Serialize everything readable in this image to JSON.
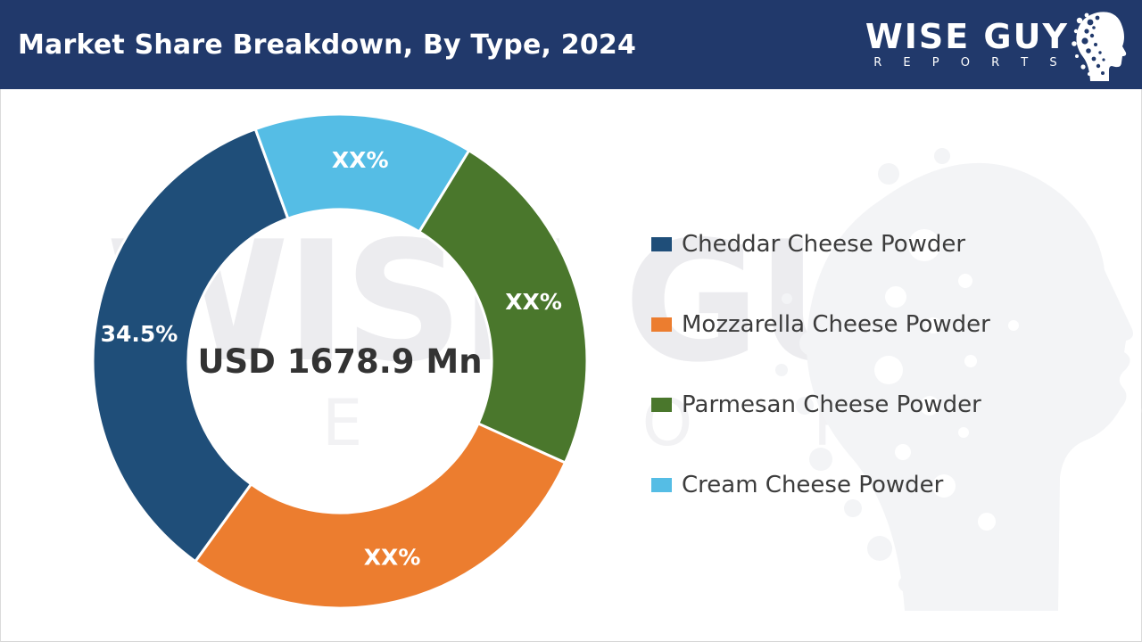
{
  "header": {
    "title": "Market Share Breakdown, By Type, 2024",
    "logo": {
      "name": "WISE GUY",
      "tagline": "R E P O R T S"
    }
  },
  "chart_data": {
    "type": "pie",
    "subtype": "donut",
    "title": "Market Share Breakdown, By Type, 2024",
    "center_label": "USD 1678.9 Mn",
    "start_angle": 110,
    "direction": "counterclockwise",
    "inner_radius_ratio": 0.614,
    "percent_label_distance": 0.82,
    "legend_position": "right",
    "series": [
      {
        "label": "Cheddar Cheese Powder",
        "value": 34.5,
        "display": "34.5%",
        "color": "#1F4E79"
      },
      {
        "label": "Mozzarella Cheese Powder",
        "value": 28.2,
        "display": "XX%",
        "color": "#EC7D2F"
      },
      {
        "label": "Parmesan Cheese Powder",
        "value": 23.0,
        "display": "XX%",
        "color": "#4A772C"
      },
      {
        "label": "Cream Cheese Powder",
        "value": 14.3,
        "display": "XX%",
        "color": "#55BDE5"
      }
    ]
  },
  "watermark": {
    "line1": "WISE GUY",
    "line2": "R E P O R T S"
  },
  "colors": {
    "header_background": "#21396B",
    "center_text": "#333333",
    "legend_text": "#3C3C3C",
    "slice_separator": "#FFFFFF"
  }
}
